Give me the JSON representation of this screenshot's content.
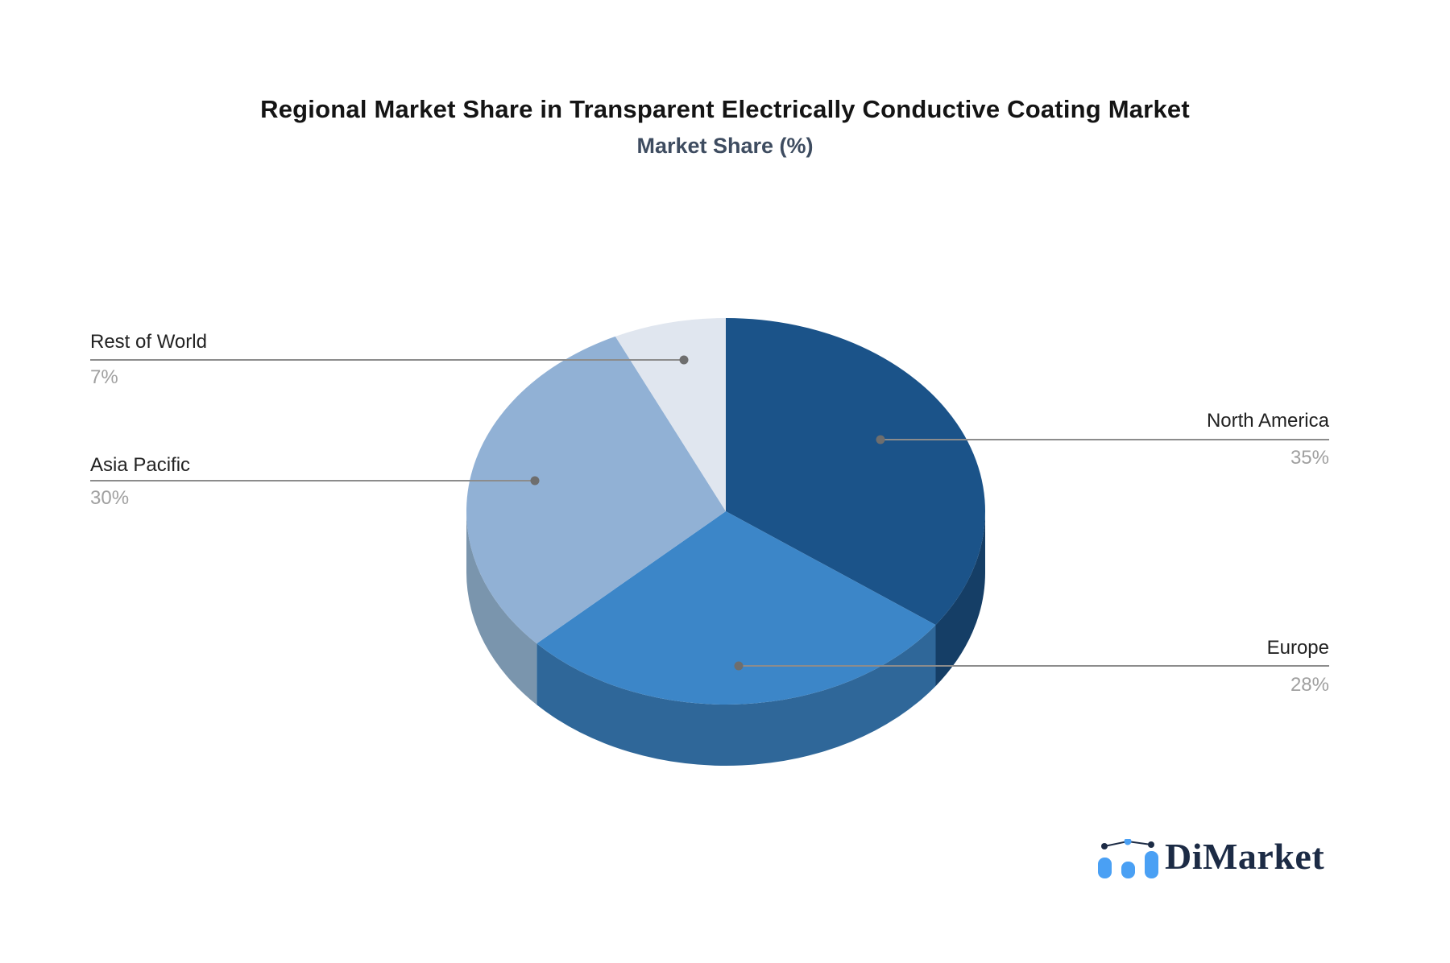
{
  "header": {
    "title": "Regional Market Share in Transparent Electrically Conductive Coating Market",
    "subtitle": "Market Share (%)"
  },
  "chart_data": {
    "type": "pie",
    "is_3d": true,
    "title": "Regional Market Share in Transparent Electrically Conductive Coating Market",
    "subtitle": "Market Share (%)",
    "unit": "%",
    "start_angle_deg": -90,
    "direction": "clockwise",
    "legend": "none",
    "connector_color": "#8C8C8C",
    "dot_color": "#6E6E6E",
    "slices": [
      {
        "label": "North America",
        "value": 35,
        "pct_label": "35%",
        "color": "#1B5389",
        "side_color": "#153E66"
      },
      {
        "label": "Europe",
        "value": 28,
        "pct_label": "28%",
        "color": "#3C86C8",
        "side_color": "#2F6799"
      },
      {
        "label": "Asia Pacific",
        "value": 30,
        "pct_label": "30%",
        "color": "#91B1D5",
        "side_color": "#7A95AD"
      },
      {
        "label": "Rest of World",
        "value": 7,
        "pct_label": "7%",
        "color": "#E0E6EF",
        "side_color": "#C9D3E2"
      }
    ]
  },
  "branding": {
    "logo_text": "DiMarket",
    "logo_text_color": "#1C2B45",
    "logo_bar_color": "#4AA0F4",
    "logo_dot_color": "#1C2B45"
  }
}
